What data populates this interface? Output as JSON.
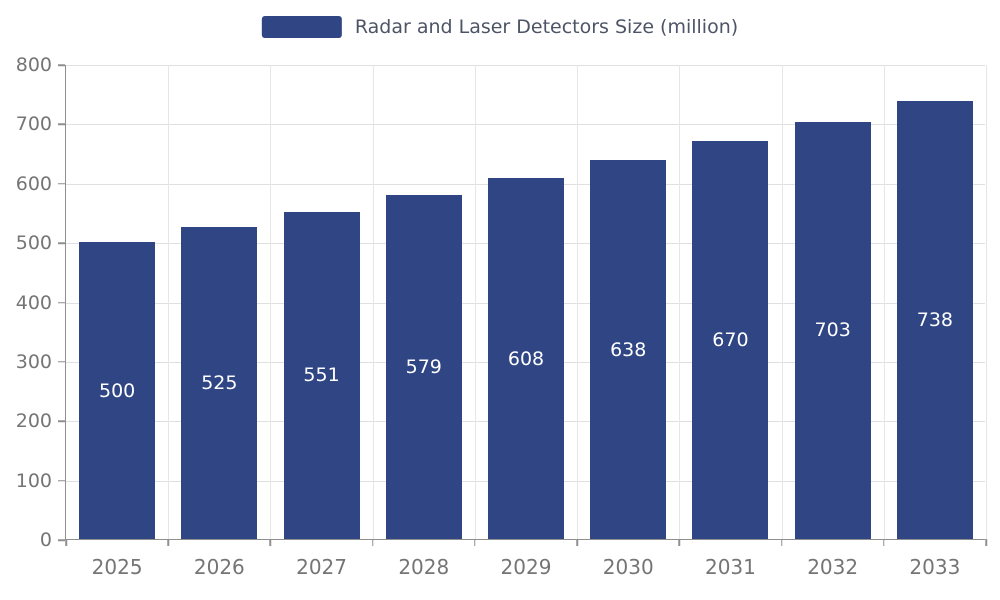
{
  "chart_data": {
    "type": "bar",
    "categories": [
      "2025",
      "2026",
      "2027",
      "2028",
      "2029",
      "2030",
      "2031",
      "2032",
      "2033"
    ],
    "values": [
      500,
      525,
      551,
      579,
      608,
      638,
      670,
      703,
      738
    ],
    "title": "Radar and Laser Detectors Size (million)",
    "xlabel": "",
    "ylabel": "",
    "ylim": [
      0,
      800
    ],
    "ytick_step": 100,
    "grid": true,
    "legend_position": "top",
    "bar_color": "#2f4584",
    "value_label_color": "#ffffff",
    "axis_color": "#8f8f8f",
    "grid_color": "#e0e0e0",
    "tick_label_color": "#757575",
    "legend_text_color": "#4d5466"
  }
}
